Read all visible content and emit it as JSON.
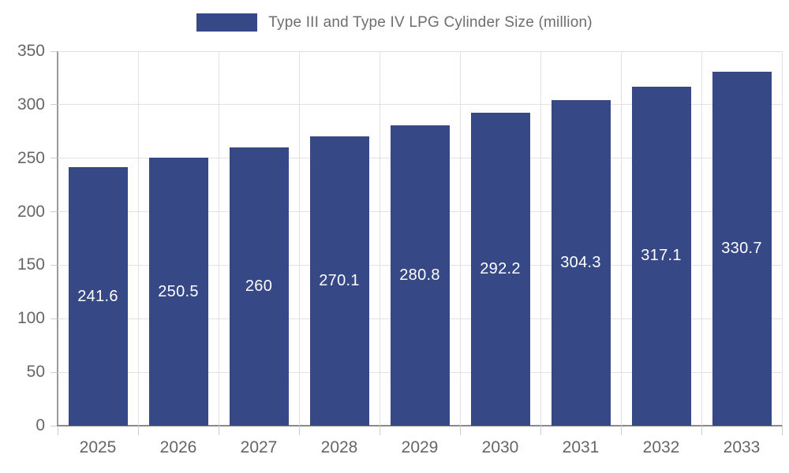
{
  "chart_data": {
    "type": "bar",
    "title": "Type III and Type IV LPG Cylinder Size (million)",
    "legend_position": "top",
    "categories": [
      "2025",
      "2026",
      "2027",
      "2028",
      "2029",
      "2030",
      "2031",
      "2032",
      "2033"
    ],
    "values": [
      241.6,
      250.5,
      260,
      270.1,
      280.8,
      292.2,
      304.3,
      317.1,
      330.7
    ],
    "value_labels": [
      "241.6",
      "250.5",
      "260",
      "270.1",
      "280.8",
      "292.2",
      "304.3",
      "317.1",
      "330.7"
    ],
    "series_name": "Type III and Type IV LPG Cylinder Size (million)",
    "xlabel": "",
    "ylabel": "",
    "ylim": [
      0,
      350
    ],
    "ytick_step": 50,
    "ytick_labels": [
      "0",
      "50",
      "100",
      "150",
      "200",
      "250",
      "300",
      "350"
    ],
    "grid": true,
    "colors": {
      "bar": "#364886",
      "grid": "#e2e2e2",
      "axis": "#999999",
      "tick": "#cccccc",
      "tick_label": "#666666",
      "value_label": "#ffffff",
      "legend_text": "#6e6e6e",
      "background": "#ffffff"
    }
  }
}
